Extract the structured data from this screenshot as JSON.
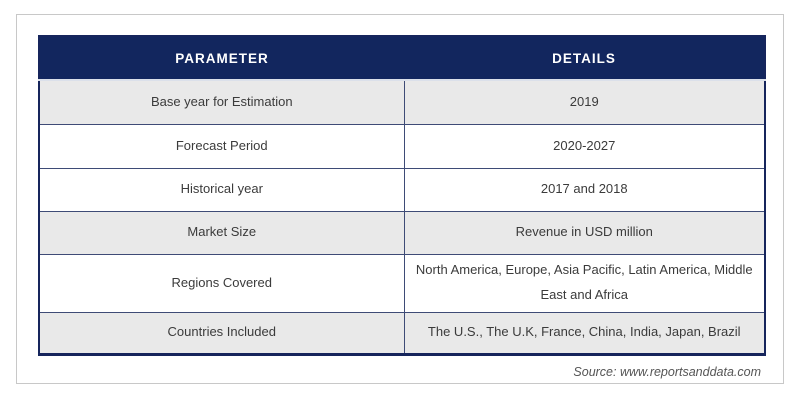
{
  "colors": {
    "header_bg": "#12265e",
    "header_text": "#ffffff",
    "row_bg": "#ffffff",
    "row_alt_bg": "#e9e9e9",
    "body_text": "#3b3b3b",
    "inner_border": "#3e4b76",
    "table_border": "#16255c",
    "card_border": "#c8c8c8",
    "source_text": "#555555"
  },
  "table": {
    "headers": [
      "PARAMETER",
      "DETAILS"
    ],
    "rows": [
      {
        "parameter": "Base year for Estimation",
        "details": "2019",
        "shaded": true
      },
      {
        "parameter": "Forecast Period",
        "details": "2020-2027",
        "shaded": false
      },
      {
        "parameter": "Historical year",
        "details": "2017 and 2018",
        "shaded": false
      },
      {
        "parameter": "Market Size",
        "details": "Revenue in USD million",
        "shaded": true
      },
      {
        "parameter": "Regions Covered",
        "details": "North America, Europe, Asia Pacific, Latin America, Middle East and Africa",
        "shaded": false
      },
      {
        "parameter": "Countries Included",
        "details": "The U.S., The  U.K, France, China, India, Japan, Brazil",
        "shaded": true
      }
    ]
  },
  "source": {
    "label": "Source: www.reportsanddata.com"
  },
  "chart_data": {
    "type": "table",
    "title": "Report scope parameters",
    "columns": [
      "PARAMETER",
      "DETAILS"
    ],
    "rows": [
      [
        "Base year for Estimation",
        "2019"
      ],
      [
        "Forecast Period",
        "2020-2027"
      ],
      [
        "Historical year",
        "2017 and 2018"
      ],
      [
        "Market Size",
        "Revenue in USD million"
      ],
      [
        "Regions Covered",
        "North America, Europe, Asia Pacific, Latin America, Middle East and Africa"
      ],
      [
        "Countries Included",
        "The U.S., The  U.K, France, China, India, Japan, Brazil"
      ]
    ]
  }
}
